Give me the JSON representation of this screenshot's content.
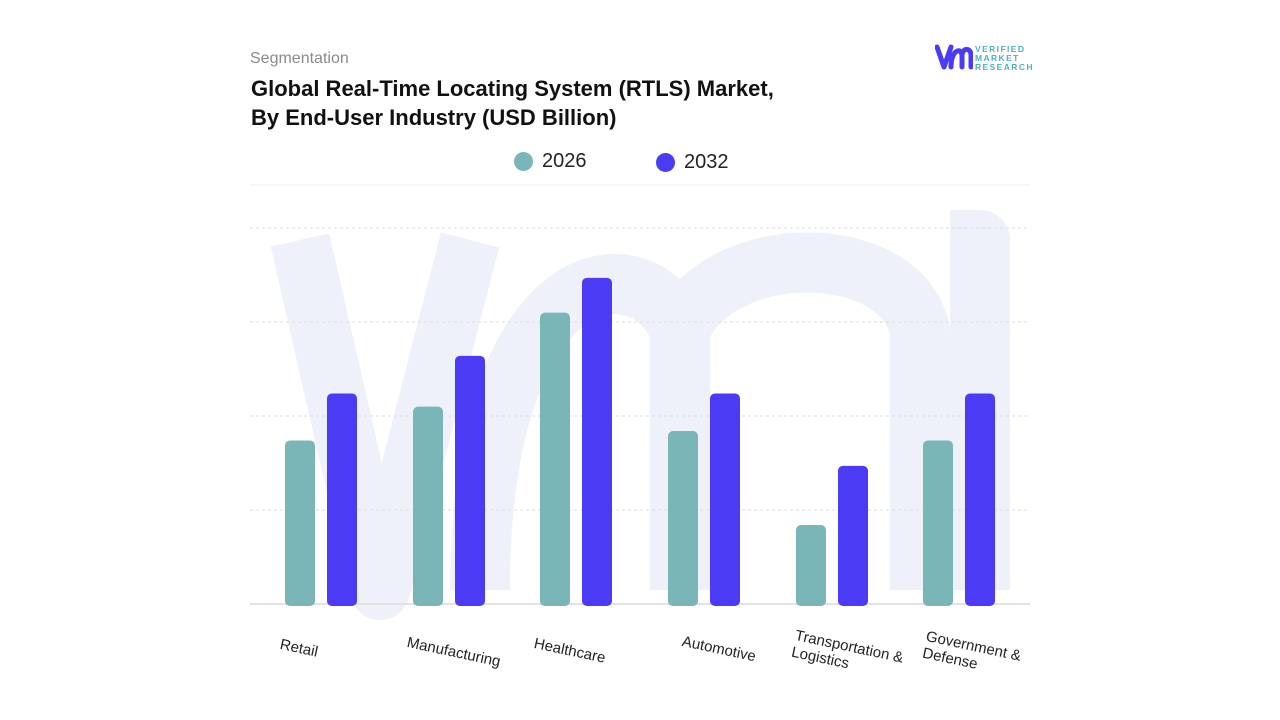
{
  "header": {
    "segment_label": "Segmentation",
    "title_line1": "Global Real-Time Locating System (RTLS) Market,",
    "title_line2": "By End-User Industry (USD Billion)"
  },
  "logo": {
    "text_line1": "VERIFIED",
    "text_line2": "MARKET",
    "text_line3": "RESEARCH",
    "brand_colors": [
      "#4b3bf5",
      "#4fb2b4"
    ]
  },
  "chart_data": {
    "type": "bar",
    "title": "Global Real-Time Locating System (RTLS) Market, By End-User Industry (USD Billion)",
    "categories": [
      "Retail",
      "Manufacturing",
      "Healthcare",
      "Automotive",
      "Transportation &\nLogistics",
      "Government &\nDefense"
    ],
    "series": [
      {
        "name": "2026",
        "color": "#7ab5b8",
        "values": [
          1.74,
          2.1,
          3.1,
          1.84,
          0.84,
          1.74
        ]
      },
      {
        "name": "2032",
        "color": "#4b3bf5",
        "values": [
          2.24,
          2.64,
          3.47,
          2.24,
          1.47,
          2.24
        ]
      }
    ],
    "ylim": [
      0,
      4
    ],
    "grid": true,
    "y_tick_labels_shown": false,
    "legend_position": "top-center"
  }
}
